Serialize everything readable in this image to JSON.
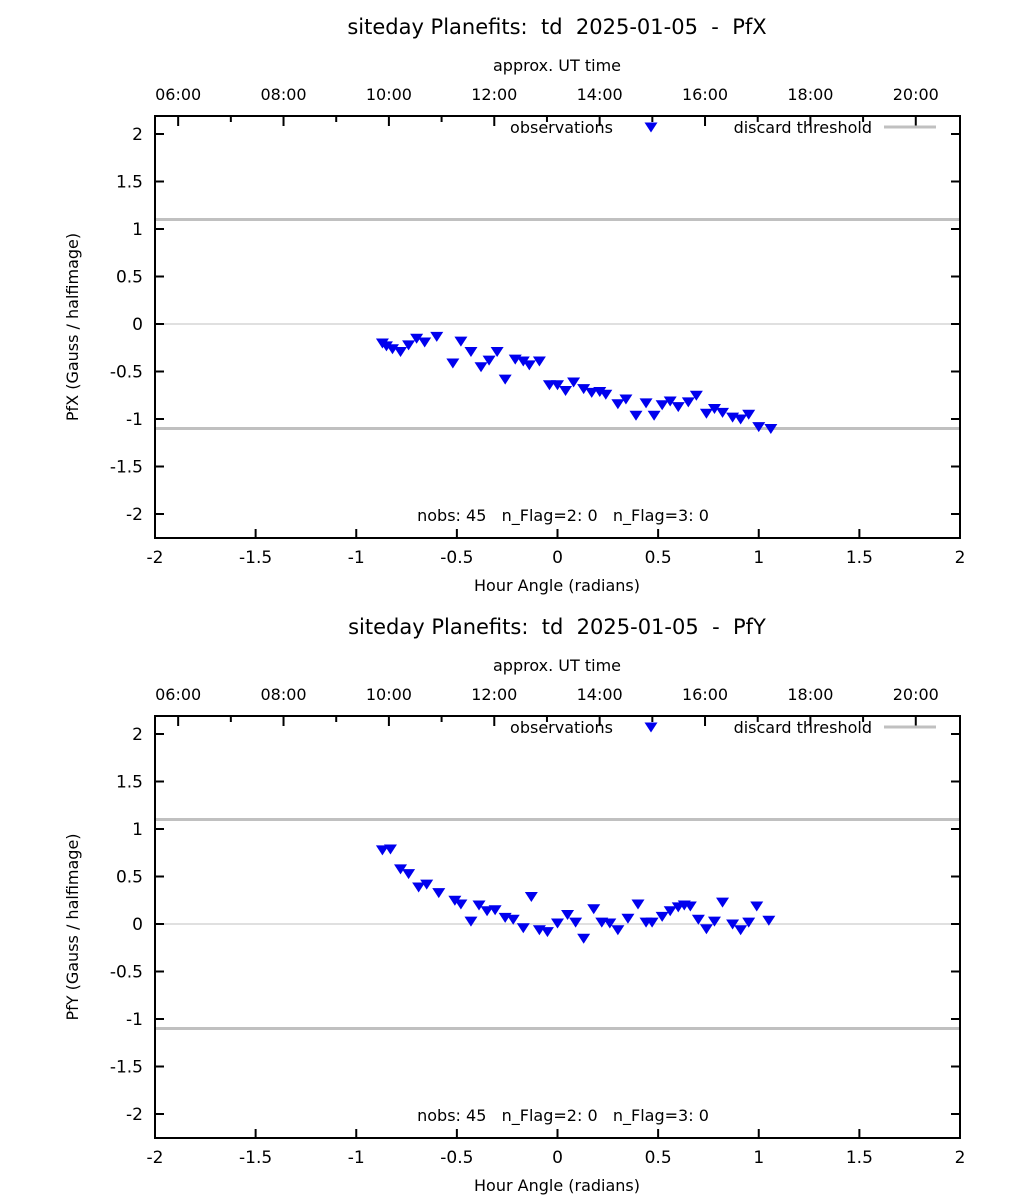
{
  "page_title": "siteday Planefits",
  "colors": {
    "points": "#0000ee",
    "threshold_line": "#c0c0c0",
    "zero_line": "#d6d6d6",
    "axis": "#000000",
    "background": "#ffffff"
  },
  "chart_data": [
    {
      "type": "scatter",
      "title": "siteday Planefits:  td  2025-01-05  -  PfX",
      "xlabel": "Hour Angle (radians)",
      "ylabel": "PfX (Gauss / halfimage)",
      "x2label": "approx. UT time",
      "xlim": [
        -2,
        2
      ],
      "ylim": [
        -2.25,
        2.19
      ],
      "xticks": [
        -2,
        -1.5,
        -1,
        -0.5,
        0,
        0.5,
        1,
        1.5,
        2
      ],
      "yticks": [
        -2,
        -1.5,
        -1,
        -0.5,
        0,
        0.5,
        1,
        1.5,
        2
      ],
      "x2ticks": {
        "hour_start": 6,
        "hour_end": 20,
        "label_every": 2,
        "labels": [
          "06:00",
          "08:00",
          "10:00",
          "12:00",
          "14:00",
          "16:00",
          "18:00",
          "20:00"
        ],
        "transit_hour": 13.2,
        "rad_per_hour": 0.2618
      },
      "grid": {
        "zero_line_y": 0
      },
      "threshold_y": [
        1.1,
        -1.1
      ],
      "legend": {
        "position": "top-inside",
        "items": [
          {
            "label": "observations",
            "type": "point"
          },
          {
            "label": "discard threshold",
            "type": "line"
          }
        ]
      },
      "annotation": "nobs: 45   n_Flag=2: 0   n_Flag=3: 0",
      "series": [
        {
          "name": "observations",
          "marker": "triangle-down",
          "points": [
            [
              -0.87,
              -0.2
            ],
            [
              -0.85,
              -0.23
            ],
            [
              -0.82,
              -0.26
            ],
            [
              -0.78,
              -0.29
            ],
            [
              -0.74,
              -0.22
            ],
            [
              -0.7,
              -0.15
            ],
            [
              -0.66,
              -0.19
            ],
            [
              -0.6,
              -0.13
            ],
            [
              -0.52,
              -0.41
            ],
            [
              -0.48,
              -0.18
            ],
            [
              -0.43,
              -0.29
            ],
            [
              -0.38,
              -0.45
            ],
            [
              -0.34,
              -0.38
            ],
            [
              -0.3,
              -0.29
            ],
            [
              -0.26,
              -0.58
            ],
            [
              -0.21,
              -0.37
            ],
            [
              -0.17,
              -0.39
            ],
            [
              -0.14,
              -0.43
            ],
            [
              -0.09,
              -0.39
            ],
            [
              -0.04,
              -0.64
            ],
            [
              0.0,
              -0.64
            ],
            [
              0.04,
              -0.7
            ],
            [
              0.08,
              -0.61
            ],
            [
              0.13,
              -0.68
            ],
            [
              0.17,
              -0.72
            ],
            [
              0.21,
              -0.71
            ],
            [
              0.24,
              -0.74
            ],
            [
              0.3,
              -0.84
            ],
            [
              0.34,
              -0.79
            ],
            [
              0.39,
              -0.96
            ],
            [
              0.44,
              -0.83
            ],
            [
              0.48,
              -0.96
            ],
            [
              0.52,
              -0.85
            ],
            [
              0.56,
              -0.81
            ],
            [
              0.6,
              -0.87
            ],
            [
              0.65,
              -0.82
            ],
            [
              0.69,
              -0.75
            ],
            [
              0.74,
              -0.94
            ],
            [
              0.78,
              -0.89
            ],
            [
              0.82,
              -0.93
            ],
            [
              0.87,
              -0.98
            ],
            [
              0.91,
              -1.0
            ],
            [
              0.95,
              -0.95
            ],
            [
              1.0,
              -1.08
            ],
            [
              1.06,
              -1.1
            ]
          ]
        }
      ]
    },
    {
      "type": "scatter",
      "title": "siteday Planefits:  td  2025-01-05  -  PfY",
      "xlabel": "Hour Angle (radians)",
      "ylabel": "PfY (Gauss / halfimage)",
      "x2label": "approx. UT time",
      "xlim": [
        -2,
        2
      ],
      "ylim": [
        -2.25,
        2.19
      ],
      "xticks": [
        -2,
        -1.5,
        -1,
        -0.5,
        0,
        0.5,
        1,
        1.5,
        2
      ],
      "yticks": [
        -2,
        -1.5,
        -1,
        -0.5,
        0,
        0.5,
        1,
        1.5,
        2
      ],
      "x2ticks": {
        "hour_start": 6,
        "hour_end": 20,
        "label_every": 2,
        "labels": [
          "06:00",
          "08:00",
          "10:00",
          "12:00",
          "14:00",
          "16:00",
          "18:00",
          "20:00"
        ],
        "transit_hour": 13.2,
        "rad_per_hour": 0.2618
      },
      "grid": {
        "zero_line_y": 0
      },
      "threshold_y": [
        1.1,
        -1.1
      ],
      "legend": {
        "position": "top-inside",
        "items": [
          {
            "label": "observations",
            "type": "point"
          },
          {
            "label": "discard threshold",
            "type": "line"
          }
        ]
      },
      "annotation": "nobs: 45   n_Flag=2: 0   n_Flag=3: 0",
      "series": [
        {
          "name": "observations",
          "marker": "triangle-down",
          "points": [
            [
              -0.87,
              0.78
            ],
            [
              -0.83,
              0.79
            ],
            [
              -0.78,
              0.58
            ],
            [
              -0.74,
              0.53
            ],
            [
              -0.69,
              0.39
            ],
            [
              -0.65,
              0.42
            ],
            [
              -0.59,
              0.33
            ],
            [
              -0.51,
              0.25
            ],
            [
              -0.48,
              0.21
            ],
            [
              -0.43,
              0.03
            ],
            [
              -0.39,
              0.2
            ],
            [
              -0.35,
              0.14
            ],
            [
              -0.31,
              0.15
            ],
            [
              -0.26,
              0.07
            ],
            [
              -0.22,
              0.05
            ],
            [
              -0.17,
              -0.04
            ],
            [
              -0.13,
              0.29
            ],
            [
              -0.09,
              -0.06
            ],
            [
              -0.05,
              -0.08
            ],
            [
              0.0,
              0.01
            ],
            [
              0.05,
              0.1
            ],
            [
              0.09,
              0.02
            ],
            [
              0.13,
              -0.15
            ],
            [
              0.18,
              0.16
            ],
            [
              0.22,
              0.02
            ],
            [
              0.26,
              0.01
            ],
            [
              0.3,
              -0.06
            ],
            [
              0.35,
              0.06
            ],
            [
              0.4,
              0.21
            ],
            [
              0.44,
              0.02
            ],
            [
              0.47,
              0.02
            ],
            [
              0.52,
              0.08
            ],
            [
              0.56,
              0.14
            ],
            [
              0.6,
              0.18
            ],
            [
              0.63,
              0.2
            ],
            [
              0.66,
              0.19
            ],
            [
              0.7,
              0.05
            ],
            [
              0.74,
              -0.05
            ],
            [
              0.78,
              0.03
            ],
            [
              0.82,
              0.23
            ],
            [
              0.87,
              0.0
            ],
            [
              0.91,
              -0.06
            ],
            [
              0.95,
              0.02
            ],
            [
              0.99,
              0.19
            ],
            [
              1.05,
              0.04
            ]
          ]
        }
      ]
    }
  ]
}
